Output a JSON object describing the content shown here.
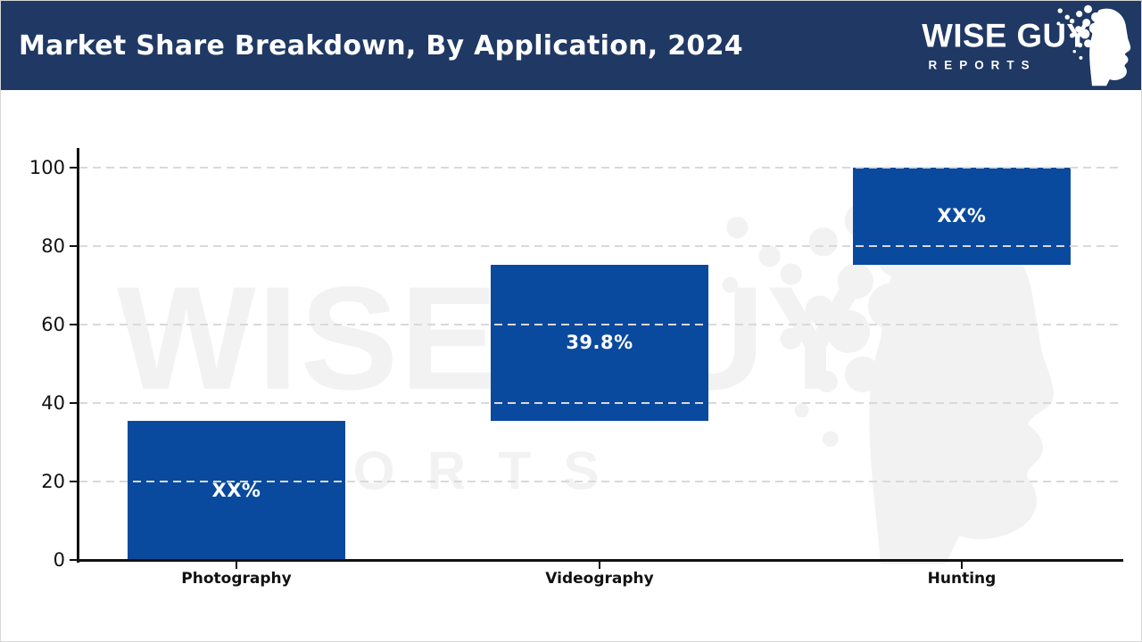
{
  "header": {
    "title": "Market Share Breakdown, By Application, 2024",
    "bg_color": "#1f3864",
    "logo": {
      "line1": "WISE GUY",
      "line2": "REPORTS"
    }
  },
  "watermark": {
    "line1": "WISE GUY",
    "line2": "REPORTS",
    "color": "#f2f2f2"
  },
  "chart_data": {
    "type": "bar",
    "subtype": "floating-segment-waterfall",
    "title": "Market Share Breakdown, By Application, 2024",
    "categories": [
      "Photography",
      "Videography",
      "Hunting"
    ],
    "segments": [
      {
        "category": "Photography",
        "start": 0,
        "end": 35.5,
        "label": "XX%"
      },
      {
        "category": "Videography",
        "start": 35.5,
        "end": 75.3,
        "label": "39.8%"
      },
      {
        "category": "Hunting",
        "start": 75.3,
        "end": 100,
        "label": "XX%"
      }
    ],
    "y_ticks": [
      0,
      20,
      40,
      60,
      80,
      100
    ],
    "ylim": [
      0,
      105
    ],
    "xlabel": "",
    "ylabel": "",
    "legend": "none",
    "grid": "horizontal-dashed",
    "colors": {
      "bar": "#0a4a9e",
      "bar_label": "#ffffff",
      "gridline": "#d9d9d9",
      "axis": "#111111",
      "tick_label": "#111111"
    }
  }
}
